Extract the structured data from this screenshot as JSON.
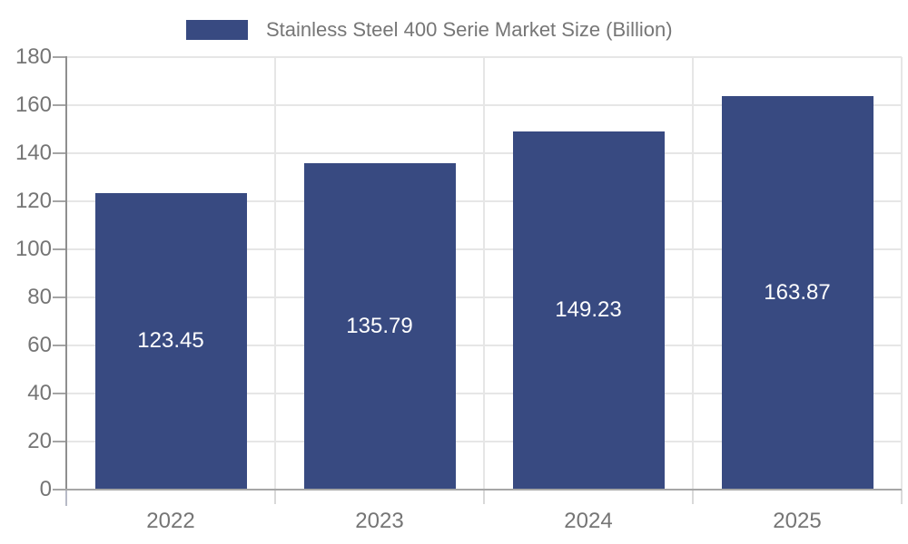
{
  "legend": {
    "label": "Stainless Steel 400 Serie Market Size (Billion)"
  },
  "chart_data": {
    "type": "bar",
    "title": "Stainless Steel 400 Serie Market Size (Billion)",
    "categories": [
      "2022",
      "2023",
      "2024",
      "2025"
    ],
    "values": [
      123.45,
      135.79,
      149.23,
      163.87
    ],
    "value_labels": [
      "123.45",
      "135.79",
      "149.23",
      "163.87"
    ],
    "xlabel": "",
    "ylabel": "",
    "ylim": [
      0,
      180
    ],
    "ytick_step": 20,
    "ytick_labels": [
      "0",
      "20",
      "40",
      "60",
      "80",
      "100",
      "120",
      "140",
      "160",
      "180"
    ],
    "grid": true,
    "legend_position": "top",
    "value_label_position": "center-inside-bar",
    "colors": {
      "bar": "#384a81",
      "grid": "#e6e6e6",
      "y_axis": "#8f8f8f",
      "x_axis": "#a6a6a6",
      "tick_text": "#757575",
      "value_text": "#ffffff",
      "legend_text": "#767676",
      "background": "#ffffff"
    }
  }
}
